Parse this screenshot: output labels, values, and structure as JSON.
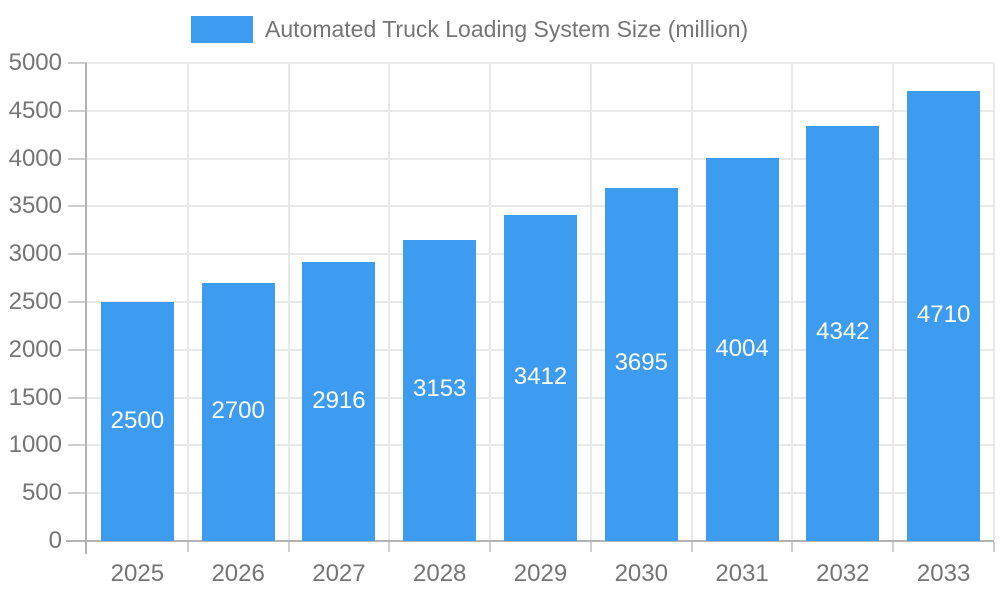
{
  "legend": {
    "label": "Automated Truck Loading System Size (million)"
  },
  "chart_data": {
    "type": "bar",
    "title": "Automated Truck Loading System Size (million)",
    "categories": [
      "2025",
      "2026",
      "2027",
      "2028",
      "2029",
      "2030",
      "2031",
      "2032",
      "2033"
    ],
    "values": [
      2500,
      2700,
      2916,
      3153,
      3412,
      3695,
      4004,
      4342,
      4710
    ],
    "series": [
      {
        "name": "Automated Truck Loading System Size (million)",
        "values": [
          2500,
          2700,
          2916,
          3153,
          3412,
          3695,
          4004,
          4342,
          4710
        ]
      }
    ],
    "xlabel": "",
    "ylabel": "",
    "ylim": [
      0,
      5000
    ],
    "yticks": [
      0,
      500,
      1000,
      1500,
      2000,
      2500,
      3000,
      3500,
      4000,
      4500,
      5000
    ],
    "grid": true,
    "legend_position": "top",
    "colors": {
      "bar": "#3d9cf0",
      "bar_label": "#ffffff",
      "axis": "#b3b3b3",
      "grid": "#e9e9e9",
      "tick": "#cfcfcf",
      "text": "#757575",
      "background": "#ffffff"
    }
  }
}
